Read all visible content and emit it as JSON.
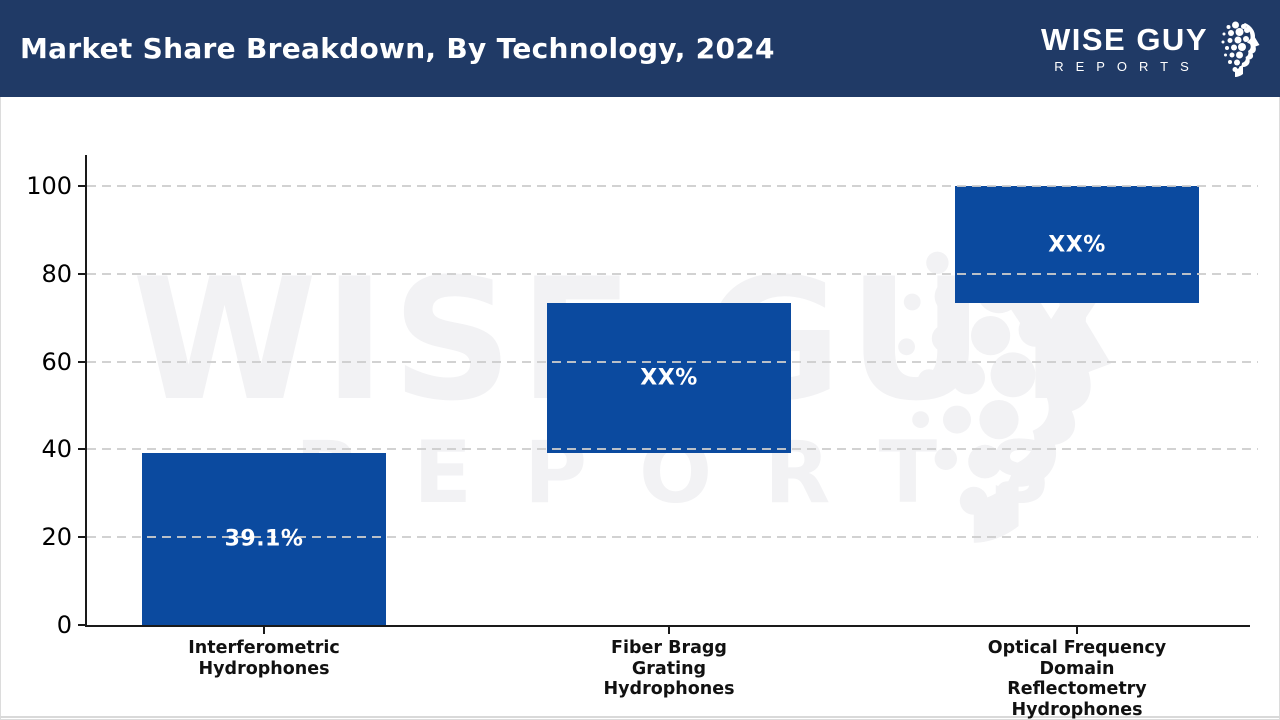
{
  "header": {
    "title": "Market Share Breakdown, By Technology, 2024",
    "background_color": "#203a66",
    "text_color": "#ffffff"
  },
  "logo": {
    "name": "WISE GUY",
    "subtitle": "REPORTS",
    "head_icon": "dotted-face-profile"
  },
  "watermark": {
    "name": "WISE GUY",
    "subtitle": "REPORTS",
    "head_icon": "dotted-face-profile",
    "color": "#f2f2f4"
  },
  "chart_data": {
    "type": "bar",
    "subtype": "waterfall",
    "title": "Market Share Breakdown, By Technology, 2024",
    "categories": [
      [
        "Interferometric",
        "Hydrophones"
      ],
      [
        "Fiber Bragg",
        "Grating",
        "Hydrophones"
      ],
      [
        "Optical Frequency",
        "Domain",
        "Reflectometry",
        "Hydrophones"
      ]
    ],
    "segments": [
      {
        "start": 0,
        "end": 39.1,
        "label": "39.1%"
      },
      {
        "start": 39.1,
        "end": 73.3,
        "label": "XX%"
      },
      {
        "start": 73.3,
        "end": 100,
        "label": "XX%"
      }
    ],
    "values": [
      39.1,
      34.2,
      26.7
    ],
    "yticks": [
      0,
      20,
      40,
      60,
      80,
      100
    ],
    "ylim": [
      0,
      100
    ],
    "xlabel": "",
    "ylabel": "",
    "legend": "none",
    "grid": {
      "visible": true,
      "style": "dashed",
      "color": "#d0d0d0"
    },
    "bar_color": "#0b4a9f",
    "bar_label_color": "#ffffff"
  }
}
